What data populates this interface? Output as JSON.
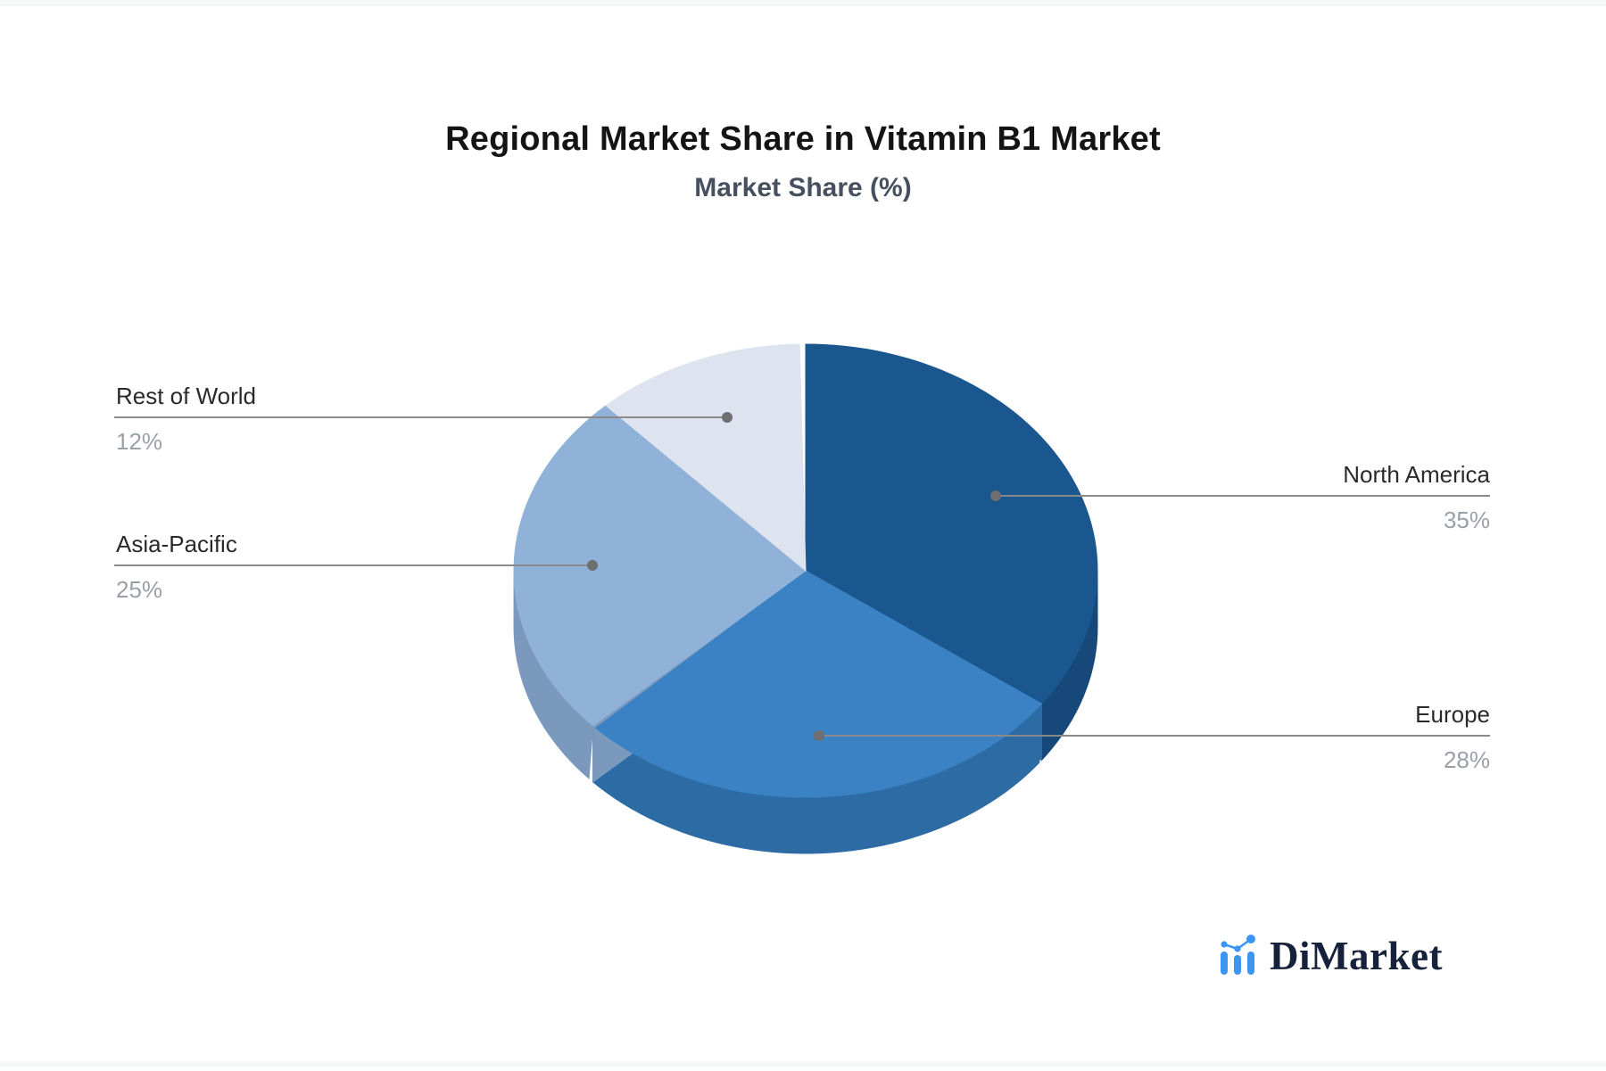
{
  "page": {
    "title": "Regional Market Share in Vitamin B1 Market",
    "subtitle": "Market Share (%)"
  },
  "brand": {
    "name": "DiMarket",
    "icon": "bar-chart-trend-icon",
    "icon_color": "#3b96f2",
    "text_color": "#16213c"
  },
  "chart_data": {
    "type": "pie",
    "style": "3d",
    "title": "Regional Market Share in Vitamin B1 Market",
    "subtitle": "Market Share (%)",
    "unit": "%",
    "start_angle_deg": 0,
    "direction": "clockwise",
    "legend": "none",
    "label_line_color": "#8a8a8a",
    "label_dot_color": "#6f6f6f",
    "label_text_color": "#2a2a2a",
    "pct_text_color": "#9aa0a7",
    "slices": [
      {
        "label": "North America",
        "value": 35,
        "pct_label": "35%",
        "color": "#1b578f",
        "side_color": "#16487a"
      },
      {
        "label": "Europe",
        "value": 28,
        "pct_label": "28%",
        "color": "#3a82c4",
        "side_color": "#2d6ba4"
      },
      {
        "label": "Asia-Pacific",
        "value": 25,
        "pct_label": "25%",
        "color": "#91b2d8",
        "side_color": "#7b99bd"
      },
      {
        "label": "Rest of World",
        "value": 12,
        "pct_label": "12%",
        "color": "#dde4f0",
        "side_color": "#bcc8da"
      }
    ]
  }
}
